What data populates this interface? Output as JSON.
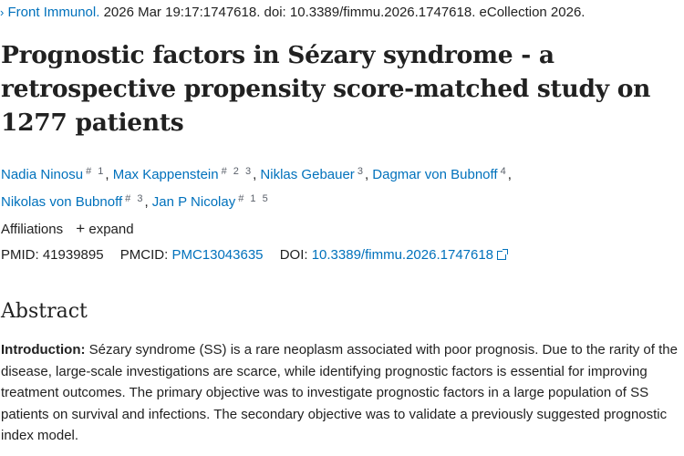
{
  "citation": {
    "journal": "Front Immunol.",
    "details": "2026 Mar 19:17:1747618. doi: 10.3389/fimmu.2026.1747618. eCollection 2026."
  },
  "title": "Prognostic factors in Sézary syndrome - a retrospective propensity score-matched study on 1277 patients",
  "authors": [
    {
      "name": "Nadia Ninosu",
      "sup": "# 1"
    },
    {
      "name": "Max Kappenstein",
      "sup": "# 2 3"
    },
    {
      "name": "Niklas Gebauer",
      "sup": "3"
    },
    {
      "name": "Dagmar von Bubnoff",
      "sup": "4"
    },
    {
      "name": "Nikolas von Bubnoff",
      "sup": "# 3"
    },
    {
      "name": "Jan P Nicolay",
      "sup": "# 1 5"
    }
  ],
  "affiliations": {
    "label": "Affiliations",
    "expand": "expand"
  },
  "identifiers": {
    "pmid_label": "PMID:",
    "pmid": "41939895",
    "pmcid_label": "PMCID:",
    "pmcid": "PMC13043635",
    "doi_label": "DOI:",
    "doi": "10.3389/fimmu.2026.1747618"
  },
  "abstract": {
    "heading": "Abstract",
    "intro_label": "Introduction:",
    "intro_text": "Sézary syndrome (SS) is a rare neoplasm associated with poor prognosis. Due to the rarity of the disease, large-scale investigations are scarce, while identifying prognostic factors is essential for improving treatment outcomes. The primary objective was to investigate prognostic factors in a large population of SS patients on survival and infections. The secondary objective was to validate a previously suggested prognostic index model."
  }
}
